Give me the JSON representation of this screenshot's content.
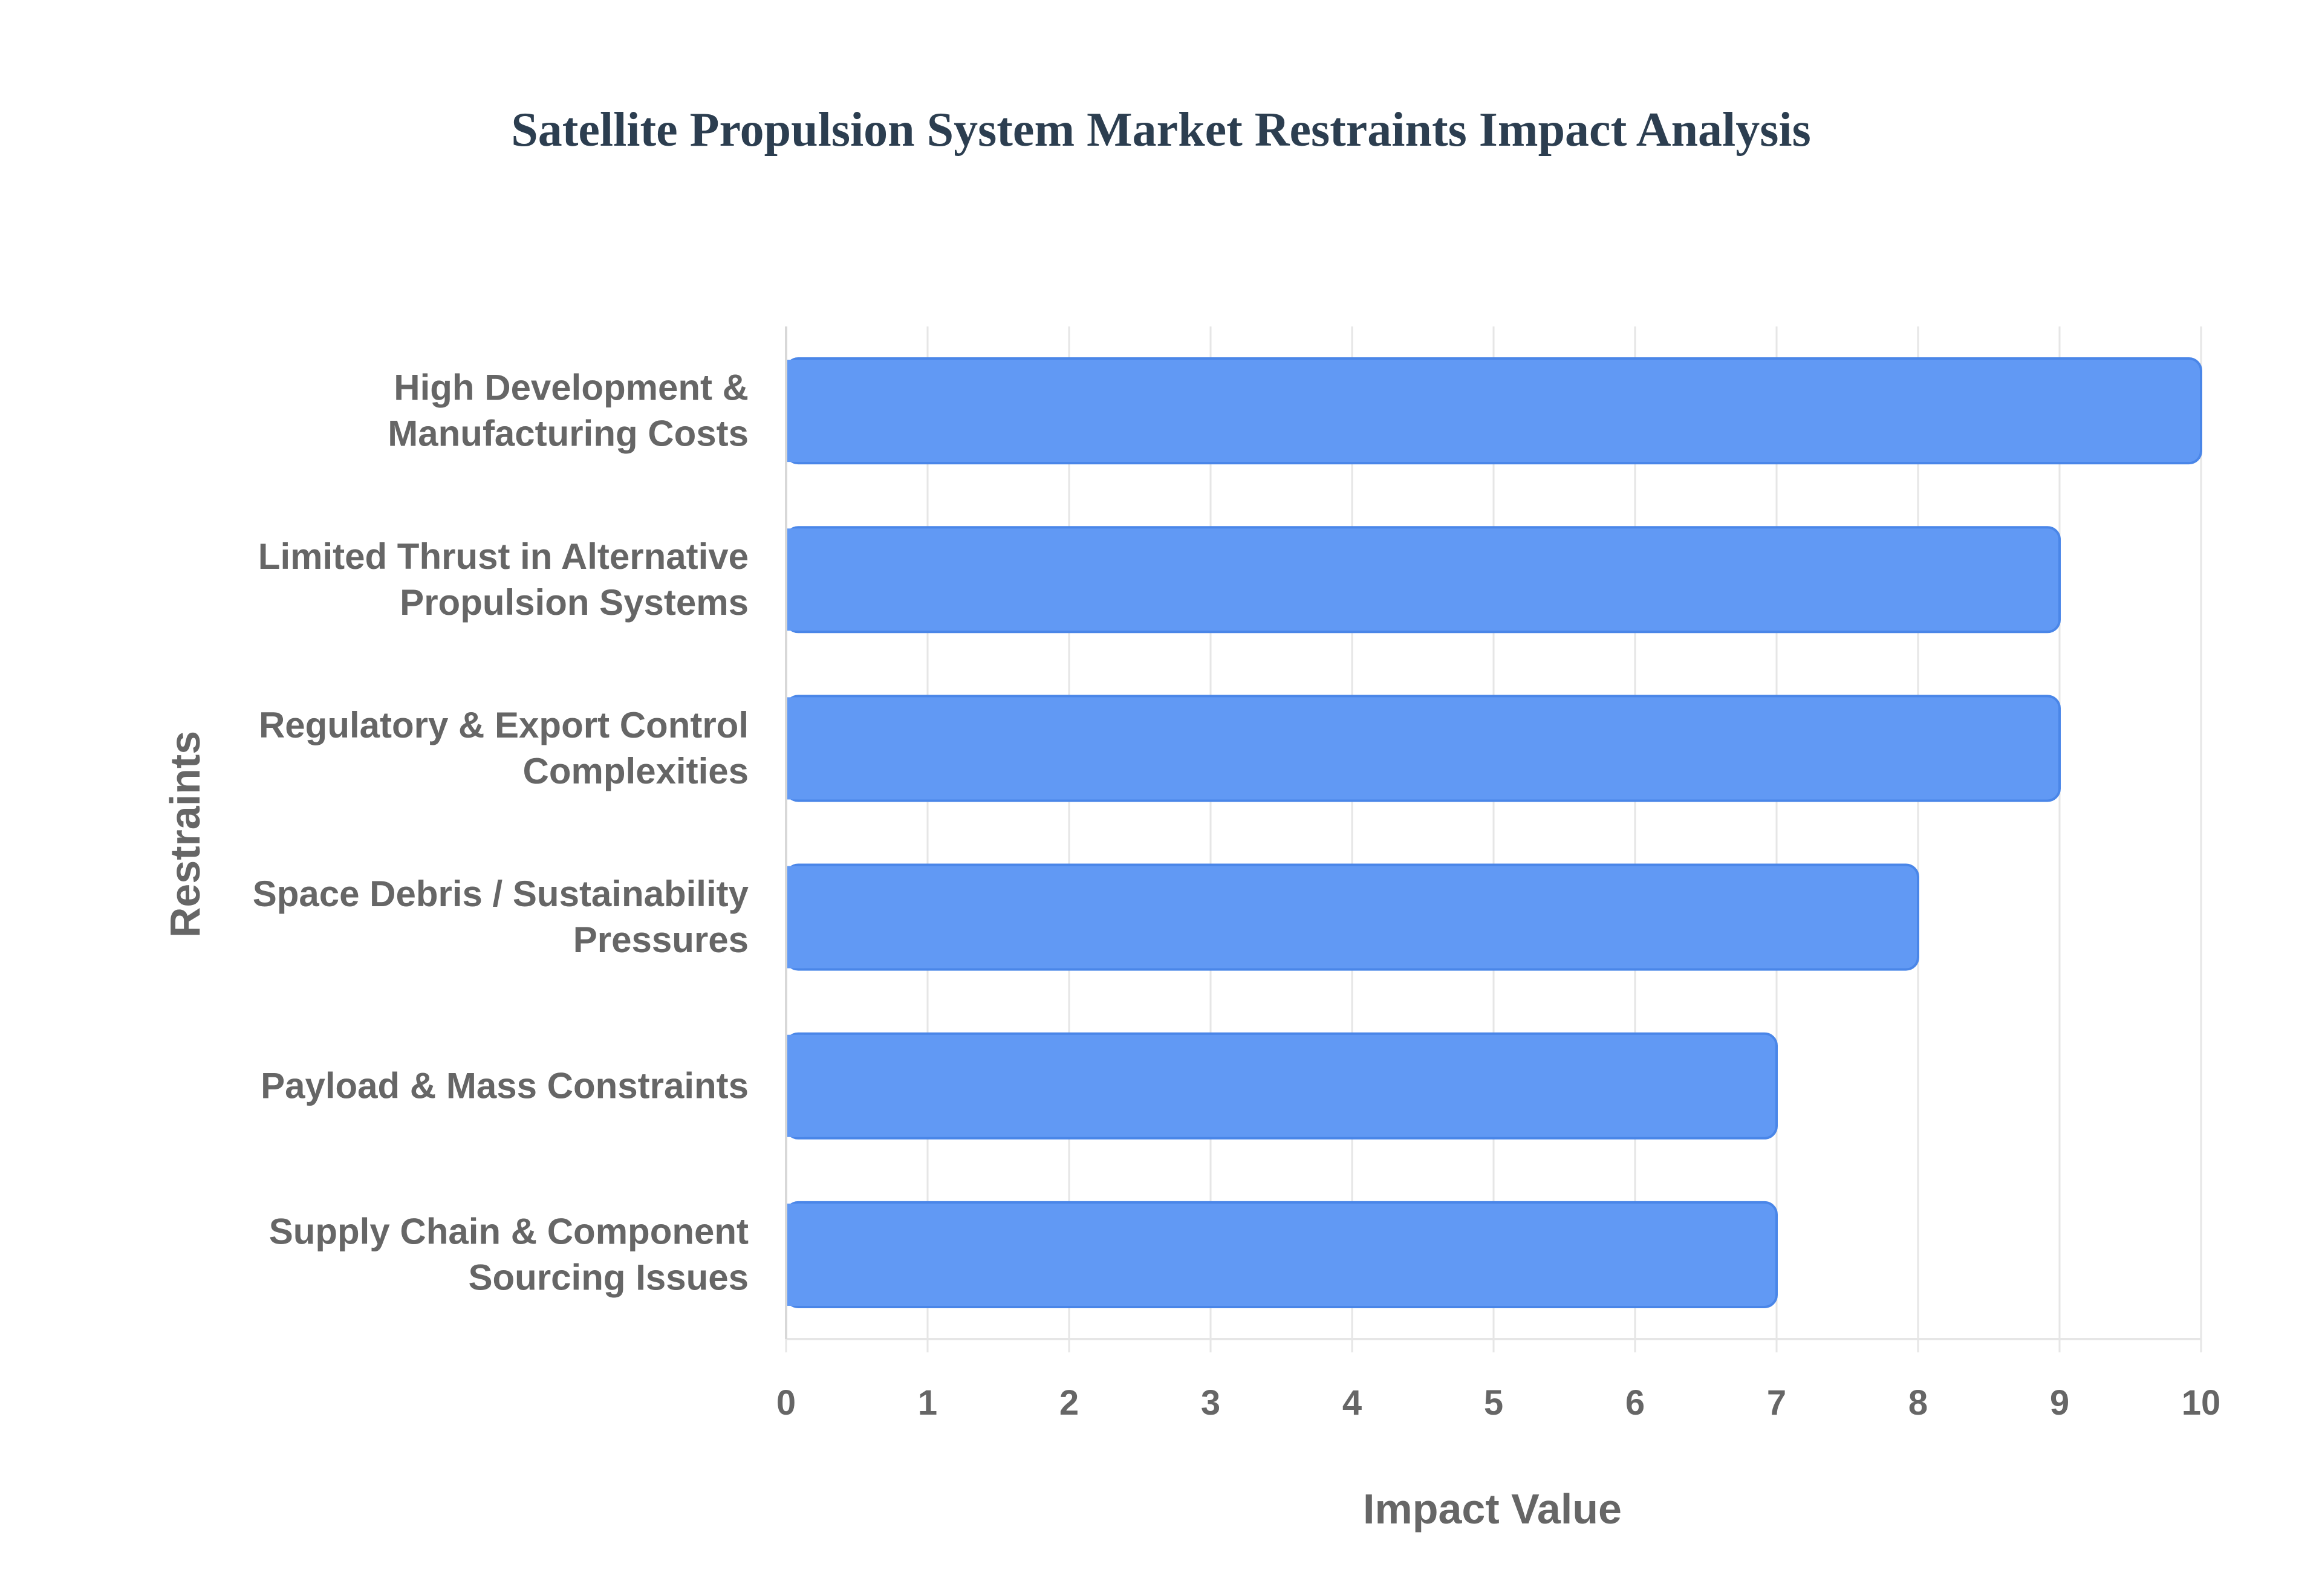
{
  "chart_data": {
    "type": "bar",
    "orientation": "horizontal",
    "title": "Satellite Propulsion System Market Restraints Impact Analysis",
    "xlabel": "Impact Value",
    "ylabel": "Restraints",
    "categories": [
      [
        "High Development &",
        "Manufacturing Costs"
      ],
      [
        "Limited Thrust in Alternative",
        "Propulsion Systems"
      ],
      [
        "Regulatory & Export Control",
        "Complexities"
      ],
      [
        "Space Debris / Sustainability",
        "Pressures"
      ],
      [
        "Payload & Mass Constraints"
      ],
      [
        "Supply Chain & Component",
        "Sourcing Issues"
      ]
    ],
    "values": [
      10,
      9,
      9,
      8,
      7,
      7
    ],
    "xlim": [
      0,
      10
    ],
    "xticks": [
      "0",
      "1",
      "2",
      "3",
      "4",
      "5",
      "6",
      "7",
      "8",
      "9",
      "10"
    ],
    "grid": true,
    "legend": "none",
    "colors": {
      "bar_fill": "#6199f4",
      "bar_stroke": "#4a86e8",
      "grid": "#e6e6e6",
      "text": "#666666",
      "title": "#2c3e50"
    }
  }
}
